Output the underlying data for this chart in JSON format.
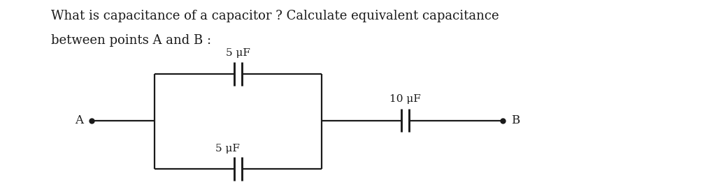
{
  "title_line1": "What is capacitance of a capacitor ? Calculate equivalent capacitance",
  "title_line2": "between points A and B :",
  "bg_color": "#ffffff",
  "text_color": "#1a1a1a",
  "font_size_title": 13.0,
  "circuit": {
    "A_label": "A",
    "B_label": "B",
    "cap1_label": "5 μF",
    "cap2_label": "5 μF",
    "cap3_label": "10 μF",
    "line_color": "#1a1a1a",
    "line_width": 1.6
  }
}
